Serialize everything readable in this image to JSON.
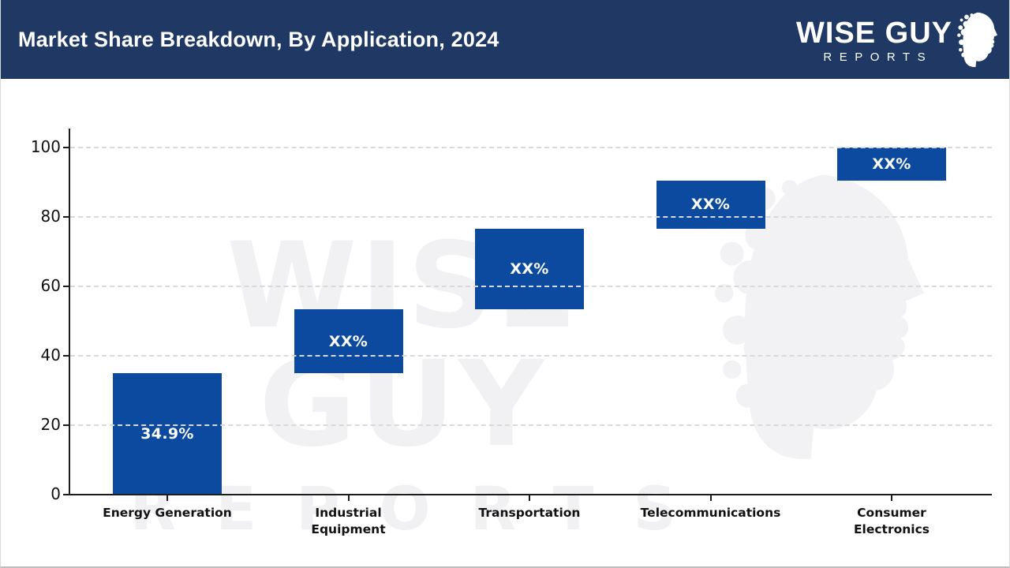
{
  "header": {
    "title": "Market Share Breakdown, By Application, 2024",
    "background": "#1f3864",
    "logo": {
      "line1": "WISE GUY",
      "line2": "REPORTS"
    }
  },
  "watermark": {
    "line1": "WISE GUY",
    "line2": "REPORTS"
  },
  "chart_data": {
    "type": "bar",
    "subtype": "waterfall",
    "title": "Market Share Breakdown, By Application, 2024",
    "xlabel": "",
    "ylabel": "",
    "ylim": [
      0,
      100
    ],
    "yticks": [
      0,
      20,
      40,
      60,
      80,
      100
    ],
    "grid": "horizontal-dashed",
    "legend": "none",
    "bar_color": "#0b4a9f",
    "value_label_color": "#ffffff",
    "grid_color": "#d9d9d9",
    "categories": [
      "Energy Generation",
      "Industrial Equipment",
      "Transportation",
      "Telecommunications",
      "Consumer Electronics"
    ],
    "segments": [
      {
        "category": "Energy Generation",
        "label_lines": [
          "Energy Generation"
        ],
        "start": 0,
        "end": 34.9,
        "label": "34.9%"
      },
      {
        "category": "Industrial Equipment",
        "label_lines": [
          "Industrial",
          "Equipment"
        ],
        "start": 34.9,
        "end": 53.5,
        "label": "XX%"
      },
      {
        "category": "Transportation",
        "label_lines": [
          "Transportation"
        ],
        "start": 53.5,
        "end": 76.7,
        "label": "XX%"
      },
      {
        "category": "Telecommunications",
        "label_lines": [
          "Telecommunications"
        ],
        "start": 76.7,
        "end": 90.5,
        "label": "XX%"
      },
      {
        "category": "Consumer Electronics",
        "label_lines": [
          "Consumer",
          "Electronics"
        ],
        "start": 90.5,
        "end": 100,
        "label": "XX%"
      }
    ]
  }
}
